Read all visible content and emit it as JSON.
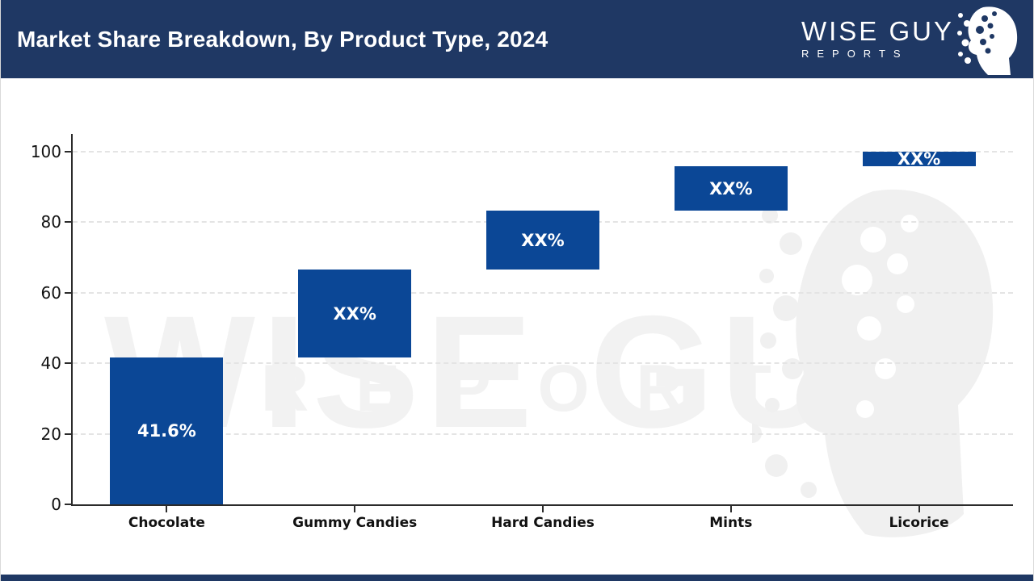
{
  "header": {
    "title": "Market Share Breakdown, By Product Type, 2024",
    "logo": {
      "line1": "WISE GUY",
      "line2": "REPORTS"
    }
  },
  "watermark": {
    "line1": "WISE GUY",
    "line2": "REPORTS"
  },
  "chart_data": {
    "type": "bar",
    "subtype": "waterfall",
    "title": "Market Share Breakdown, By Product Type, 2024",
    "categories": [
      "Chocolate",
      "Gummy Candies",
      "Hard Candies",
      "Mints",
      "Licorice"
    ],
    "segments": [
      {
        "category": "Chocolate",
        "start": 0,
        "end": 41.6,
        "value": 41.6,
        "label": "41.6%"
      },
      {
        "category": "Gummy Candies",
        "start": 41.6,
        "end": 66.6,
        "value": 25.0,
        "label": "XX%"
      },
      {
        "category": "Hard Candies",
        "start": 66.6,
        "end": 83.2,
        "value": 16.6,
        "label": "XX%"
      },
      {
        "category": "Mints",
        "start": 83.2,
        "end": 95.8,
        "value": 12.6,
        "label": "XX%"
      },
      {
        "category": "Licorice",
        "start": 95.8,
        "end": 100,
        "value": 4.2,
        "label": "XX%"
      }
    ],
    "yticks": [
      0,
      20,
      40,
      60,
      80,
      100
    ],
    "ylim": [
      0,
      105
    ],
    "xlabel": "",
    "ylabel": "",
    "grid": "horizontal-dashed",
    "legend": "none",
    "bar_color": "#0b4796",
    "value_label_color": "#ffffff"
  },
  "colors": {
    "header_bg": "#1f3864",
    "footer_bg": "#1f3864",
    "bar": "#0b4796",
    "grid": "#e4e4e4",
    "axis": "#2b2b2b",
    "watermark": "#f2f2f2",
    "page_border": "#d9d9d9"
  }
}
